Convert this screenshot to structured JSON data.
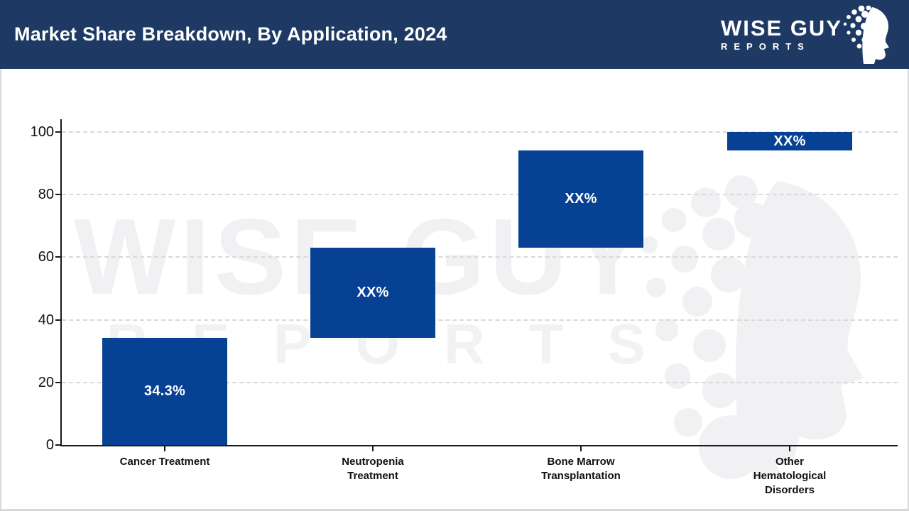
{
  "header": {
    "title": "Market Share Breakdown, By Application, 2024",
    "logo": {
      "wordmark": "WISE GUY",
      "subtext": "REPORTS"
    }
  },
  "watermark": {
    "wordmark": "WISE GUY",
    "subtext": "REPORTS"
  },
  "colors": {
    "header_bg": "#1e3a64",
    "bar": "#074194",
    "bar_label": "#ffffff",
    "grid": "#d9d9d9",
    "axis": "#1a1a1a"
  },
  "chart_data": {
    "type": "bar",
    "subtype": "floating-segment (waterfall-style market share)",
    "title": "Market Share Breakdown, By Application, 2024",
    "categories": [
      "Cancer Treatment",
      "Neutropenia Treatment",
      "Bone Marrow Transplantation",
      "Other Hematological Disorders"
    ],
    "categories_lines": [
      [
        "Cancer Treatment"
      ],
      [
        "Neutropenia",
        "Treatment"
      ],
      [
        "Bone Marrow",
        "Transplantation"
      ],
      [
        "Other",
        "Hematological",
        "Disorders"
      ]
    ],
    "bars": [
      {
        "category": "Cancer Treatment",
        "start": 0,
        "end": 34.3,
        "label": "34.3%"
      },
      {
        "category": "Neutropenia Treatment",
        "start": 34.3,
        "end": 63,
        "label": "XX%"
      },
      {
        "category": "Bone Marrow Transplantation",
        "start": 63,
        "end": 94,
        "label": "XX%"
      },
      {
        "category": "Other Hematological Disorders",
        "start": 94,
        "end": 100,
        "label": "XX%"
      }
    ],
    "ylim": [
      0,
      100
    ],
    "yticks": [
      0,
      20,
      40,
      60,
      80,
      100
    ],
    "xlabel": "",
    "ylabel": "",
    "grid": "horizontal-dashed",
    "legend": "none",
    "bar_color": "#074194",
    "bar_label_color": "#ffffff"
  }
}
